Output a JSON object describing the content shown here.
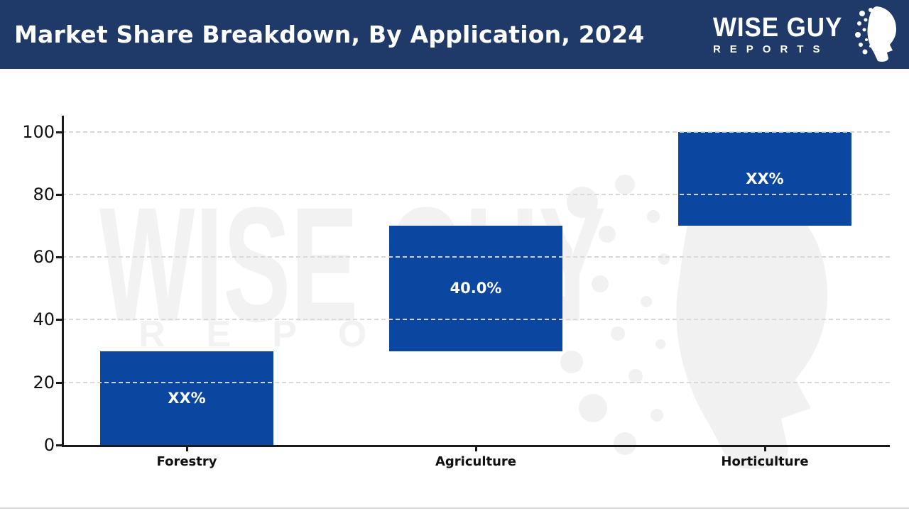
{
  "header": {
    "title": "Market Share Breakdown, By Application, 2024",
    "background_color": "#1f3a68",
    "logo": {
      "line1": "WISE GUY",
      "line2": "REPORTS"
    }
  },
  "watermark": {
    "line1": "WISE GUY",
    "line2": "REPORTS"
  },
  "chart_data": {
    "type": "bar",
    "subtype": "waterfall-floating-bars",
    "title": "Market Share Breakdown, By Application, 2024",
    "categories": [
      "Forestry",
      "Agriculture",
      "Horticulture"
    ],
    "series": [
      {
        "name": "Market Share %",
        "segments": [
          {
            "category": "Forestry",
            "start": 0,
            "end": 30,
            "value": 30,
            "label": "XX%"
          },
          {
            "category": "Agriculture",
            "start": 30,
            "end": 70,
            "value": 40,
            "label": "40.0%"
          },
          {
            "category": "Horticulture",
            "start": 70,
            "end": 100,
            "value": 30,
            "label": "XX%"
          }
        ]
      }
    ],
    "xlabel": "",
    "ylabel": "",
    "ylim": [
      0,
      100
    ],
    "yticks": [
      0,
      20,
      40,
      60,
      80,
      100
    ],
    "grid": "horizontal-dashed",
    "legend": "none",
    "bar_color": "#0b46a1",
    "bar_label_color": "#ffffff",
    "gridline_color": "#d9d9d9",
    "axis_color": "#1a1a1a"
  }
}
